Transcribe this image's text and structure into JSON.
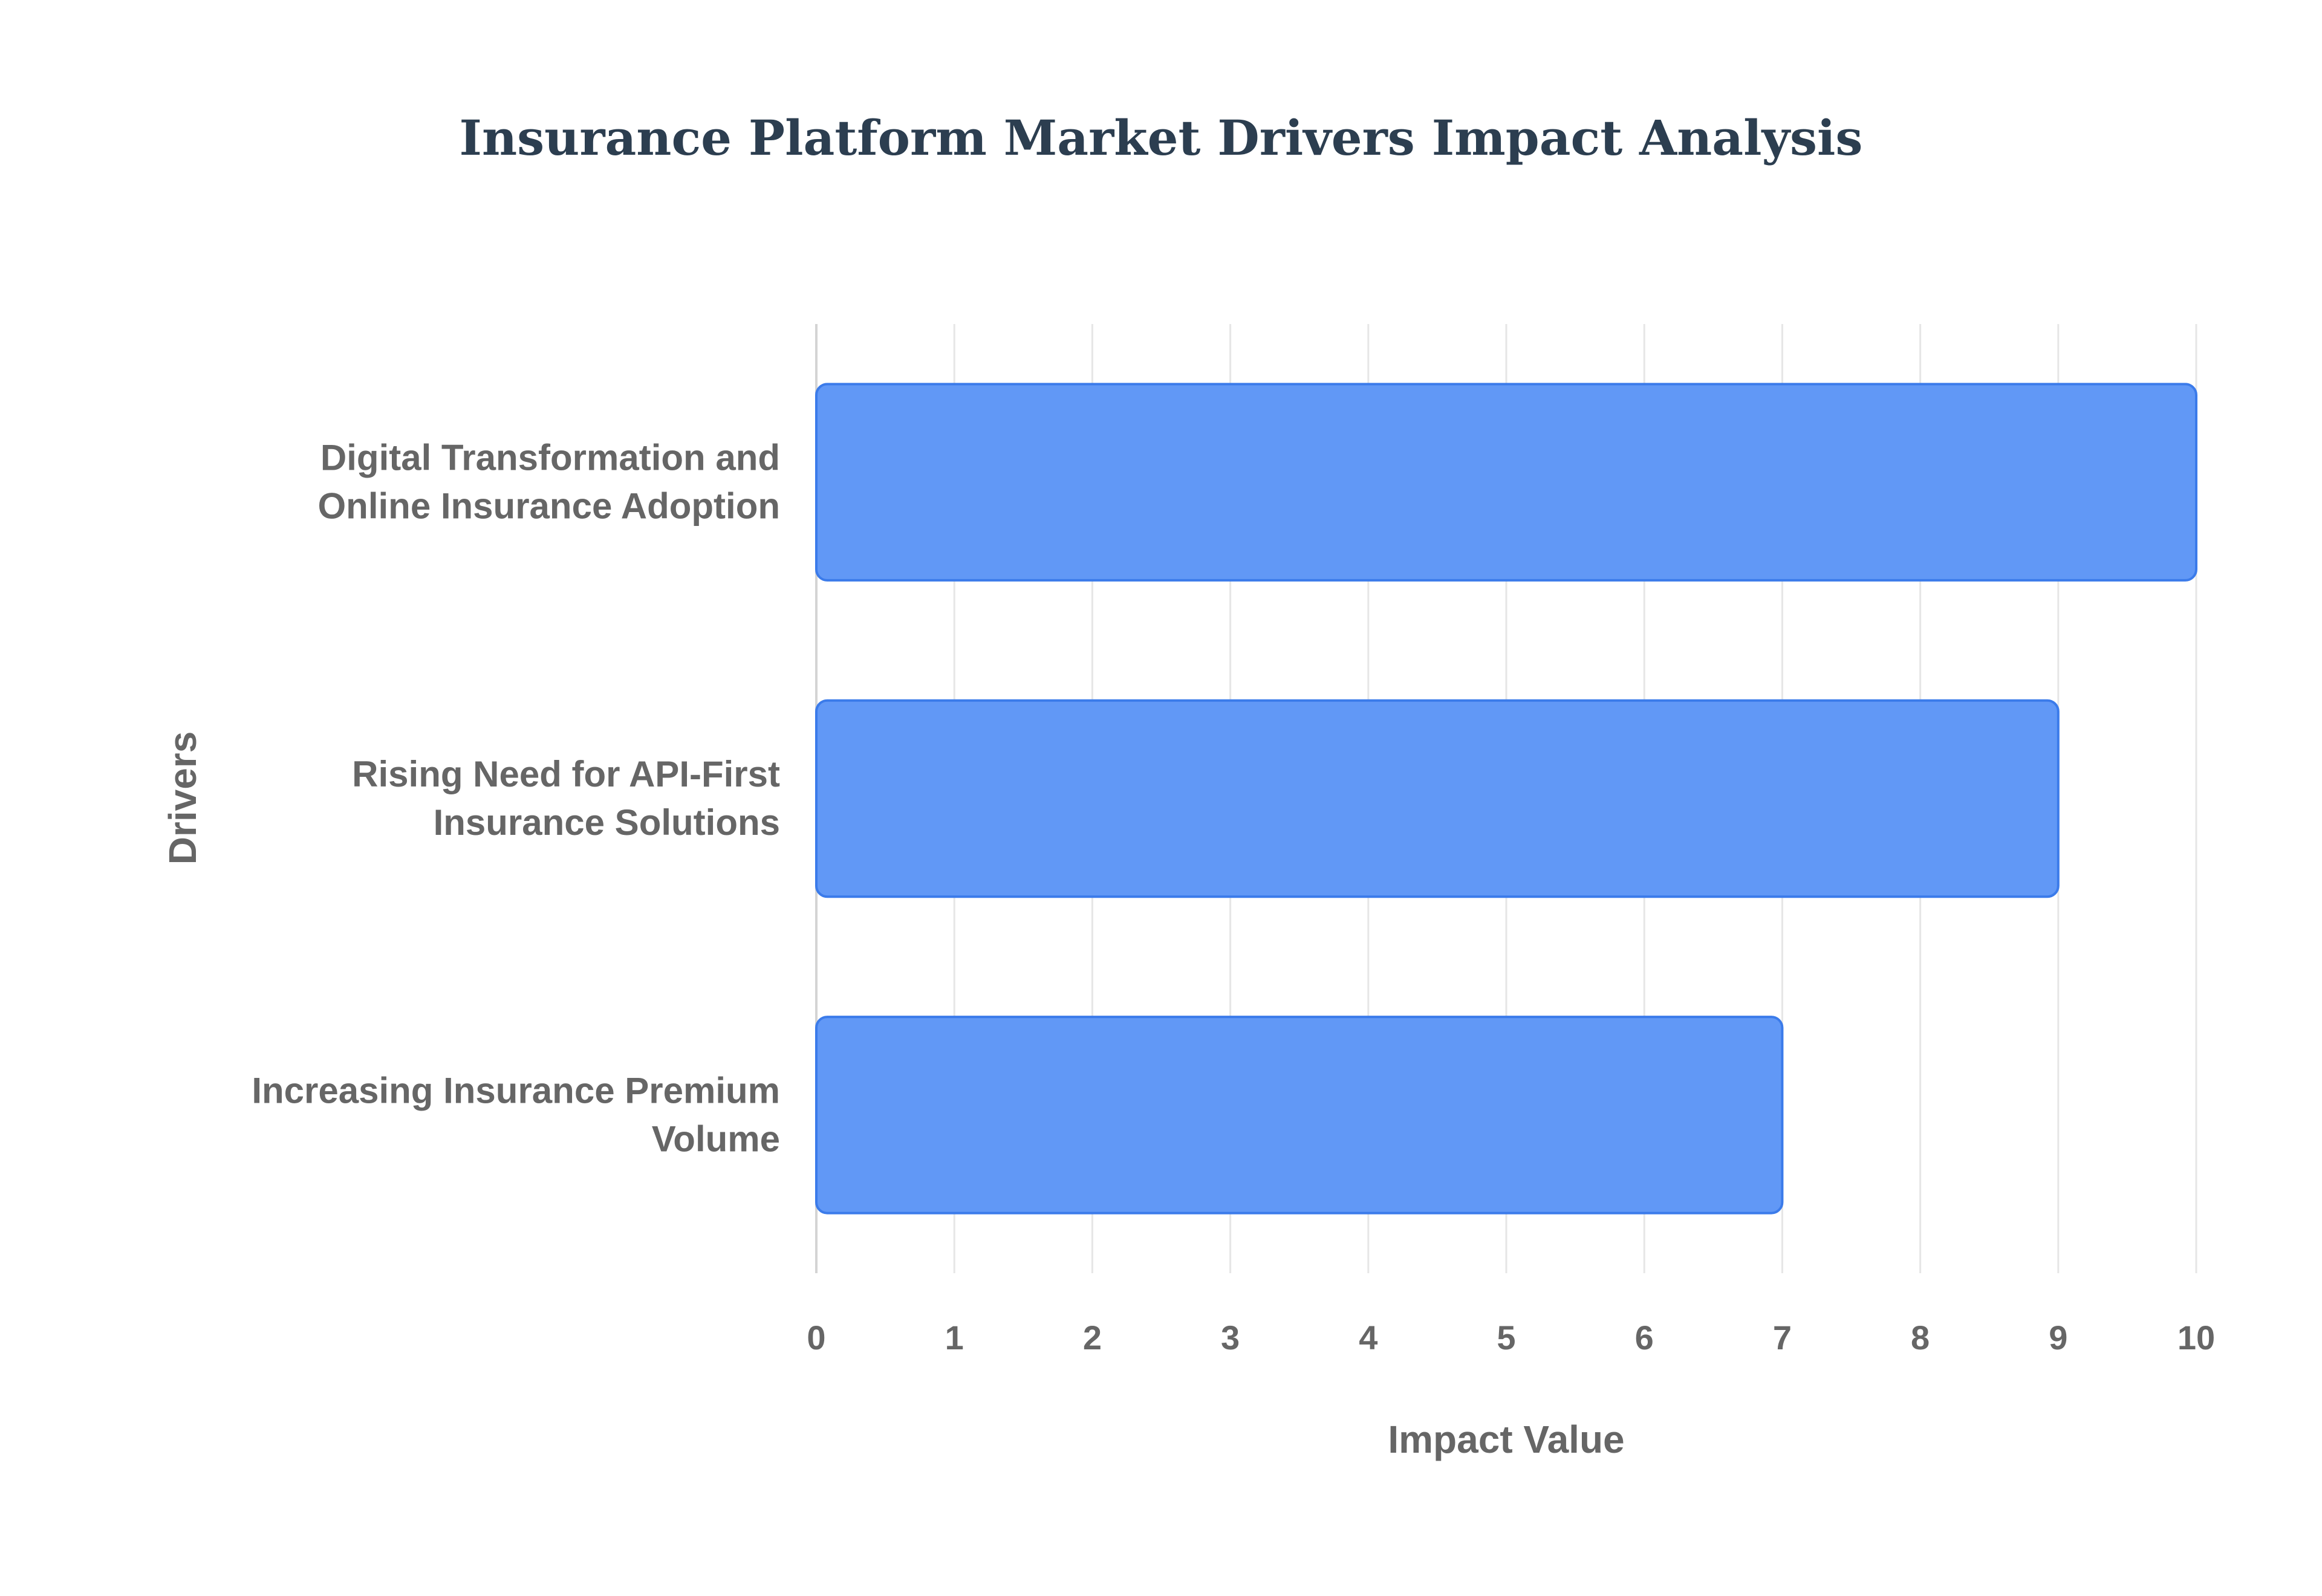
{
  "chart_data": {
    "type": "bar",
    "orientation": "horizontal",
    "title": "Insurance Platform Market Drivers Impact Analysis",
    "xlabel": "Impact Value",
    "ylabel": "Drivers",
    "categories": [
      [
        "Digital Transformation and",
        "Online Insurance Adoption"
      ],
      [
        "Rising Need for API-First",
        "Insurance Solutions"
      ],
      [
        "Increasing Insurance Premium",
        "Volume"
      ]
    ],
    "values": [
      10,
      9,
      7
    ],
    "xlim": [
      0,
      10
    ],
    "xticks": [
      "0",
      "1",
      "2",
      "3",
      "4",
      "5",
      "6",
      "7",
      "8",
      "9",
      "10"
    ],
    "grid": true,
    "legend": "none",
    "colors": {
      "bar_fill": "#6198F6",
      "bar_stroke": "#3B7BEA",
      "title": "#2C3E50",
      "text": "#666666",
      "grid": "#E6E6E6",
      "axis": "#D4D4D4"
    }
  }
}
